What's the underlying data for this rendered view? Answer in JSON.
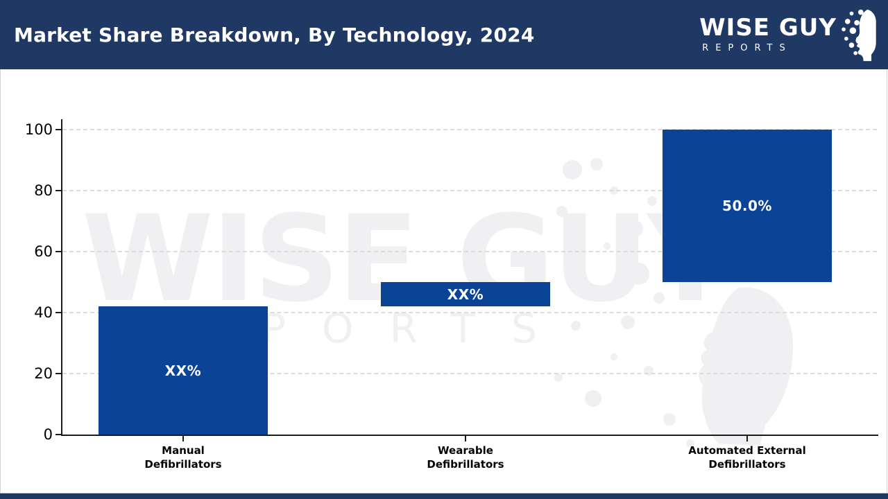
{
  "header": {
    "title": "Market Share Breakdown, By Technology, 2024",
    "logo": {
      "name": "WISE GUY",
      "sub": "REPORTS"
    }
  },
  "watermark": {
    "line1": "WISE GUY",
    "line2": "REPORTS"
  },
  "appearance": {
    "header_bg": "#203864",
    "footer_bg": "#203864",
    "bar_color": "#0b4397",
    "bar_label_color": "#ffffff",
    "watermark_color": "#f0f0f2",
    "grid_color": "#dcdcdc",
    "axis_color": "#1a1a1a"
  },
  "chart_data": {
    "type": "bar",
    "subtype": "floating-segment-bars",
    "title": "Market Share Breakdown, By Technology, 2024",
    "xlabel": "",
    "ylabel": "",
    "ylim": [
      0,
      100
    ],
    "yticks": [
      0,
      20,
      40,
      60,
      80,
      100
    ],
    "grid": "horizontal-dashed",
    "legend": "none",
    "bars": [
      {
        "category_lines": [
          "Manual",
          "Defibrillators"
        ],
        "from": 0,
        "to": 42,
        "label": "XX%"
      },
      {
        "category_lines": [
          "Wearable",
          "Defibrillators"
        ],
        "from": 42,
        "to": 50,
        "label": "XX%"
      },
      {
        "category_lines": [
          "Automated External",
          "Defibrillators"
        ],
        "from": 50,
        "to": 100,
        "label": "50.0%"
      }
    ]
  }
}
